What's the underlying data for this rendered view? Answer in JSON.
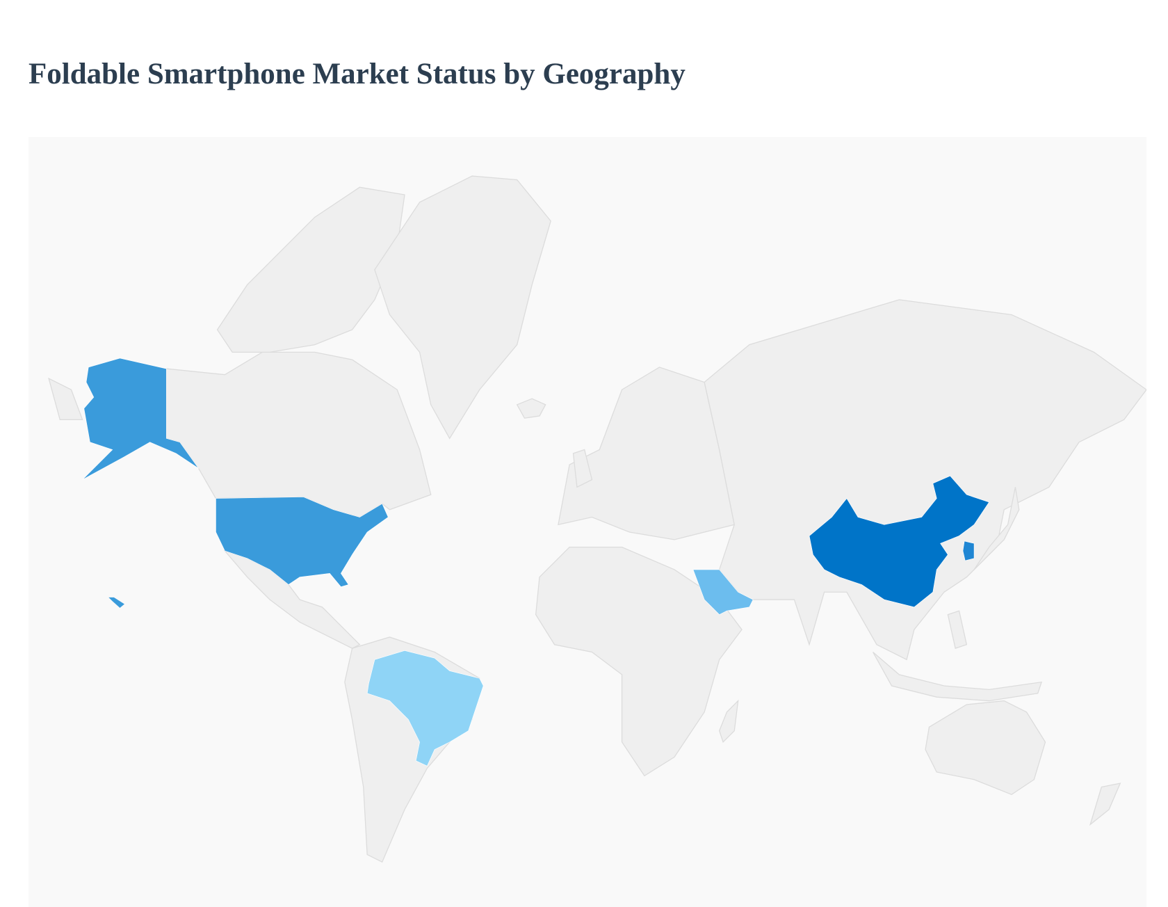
{
  "title": "Foldable Smartphone Market Status by Geography",
  "chart_data": {
    "type": "choropleth",
    "title": "Foldable Smartphone Market Status by Geography",
    "default_color": "#efefef",
    "highlighted": [
      {
        "country": "China",
        "color": "#0074c8"
      },
      {
        "country": "South Korea",
        "color": "#1f86d3"
      },
      {
        "country": "United States",
        "color": "#3a9bdb"
      },
      {
        "country": "Saudi Arabia",
        "color": "#6cbdee"
      },
      {
        "country": "Brazil",
        "color": "#8fd4f6"
      }
    ]
  }
}
